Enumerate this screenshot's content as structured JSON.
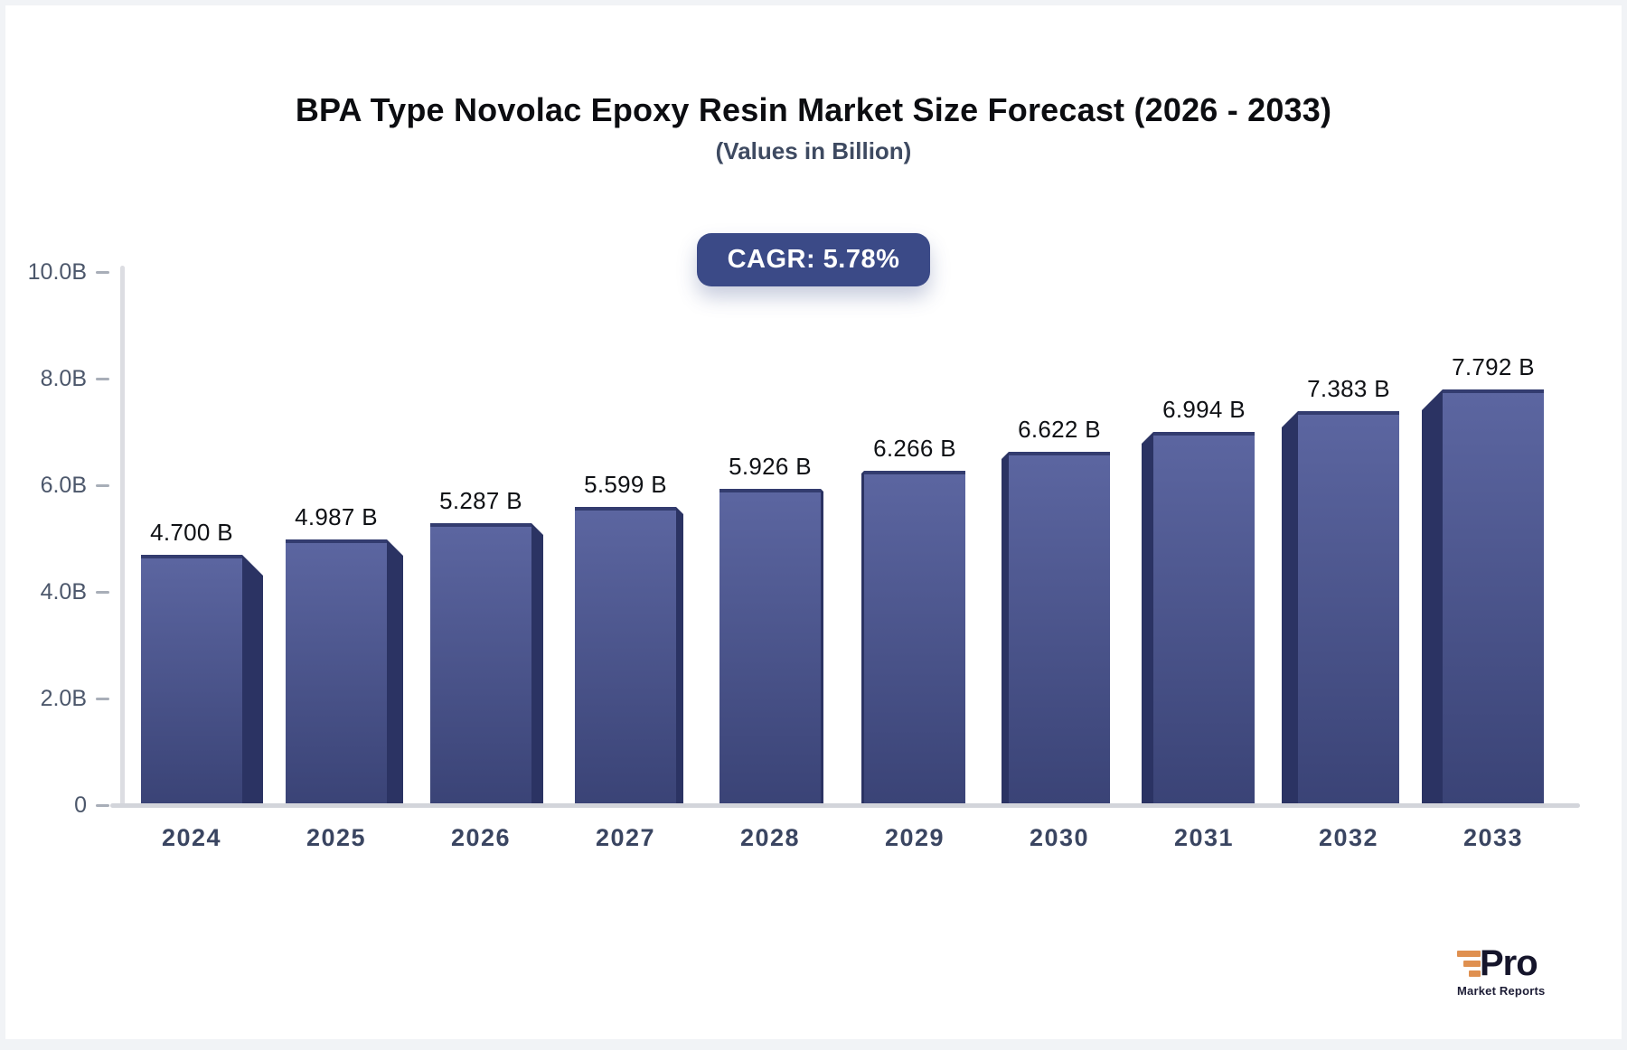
{
  "header": {
    "title": "BPA Type Novolac Epoxy Resin Market Size Forecast (2026 - 2033)",
    "subtitle": "(Values in Billion)",
    "cagr_label": "CAGR: 5.78%"
  },
  "chart_data": {
    "type": "bar",
    "title": "BPA Type Novolac Epoxy Resin Market Size Forecast (2026 - 2033)",
    "subtitle": "(Values in Billion)",
    "unit": "Billion",
    "cagr_percent": 5.78,
    "categories": [
      "2024",
      "2025",
      "2026",
      "2027",
      "2028",
      "2029",
      "2030",
      "2031",
      "2032",
      "2033"
    ],
    "values": [
      4.7,
      4.987,
      5.287,
      5.599,
      5.926,
      6.266,
      6.622,
      6.994,
      7.383,
      7.792
    ],
    "value_labels": [
      "4.700 B",
      "4.987 B",
      "5.287 B",
      "5.599 B",
      "5.926 B",
      "6.266 B",
      "6.622 B",
      "6.994 B",
      "7.383 B",
      "7.792 B"
    ],
    "xlabel": "",
    "ylabel": "",
    "ylim": [
      0,
      10
    ],
    "ytick_labels": [
      "10.0B",
      "8.0B",
      "6.0B",
      "4.0B",
      "2.0B",
      "0"
    ],
    "ytick_values": [
      10,
      8,
      6,
      4,
      2,
      0
    ],
    "grid": "off",
    "legend": "none",
    "colors": {
      "bar_face_top": "#5c66a1",
      "bar_face_bottom": "#3a4376",
      "bar_side": "#2b3363",
      "bar_top_edge": "#333c6f",
      "badge_background": "#3b4a87",
      "badge_text": "#ffffff",
      "axis_line": "#dcdde2",
      "baseline": "#d3d5db",
      "tick": "#a8aeb8"
    }
  },
  "branding": {
    "logo_text": "Pro",
    "logo_subtext": "Market Reports",
    "logo_accent": "#df9050"
  }
}
